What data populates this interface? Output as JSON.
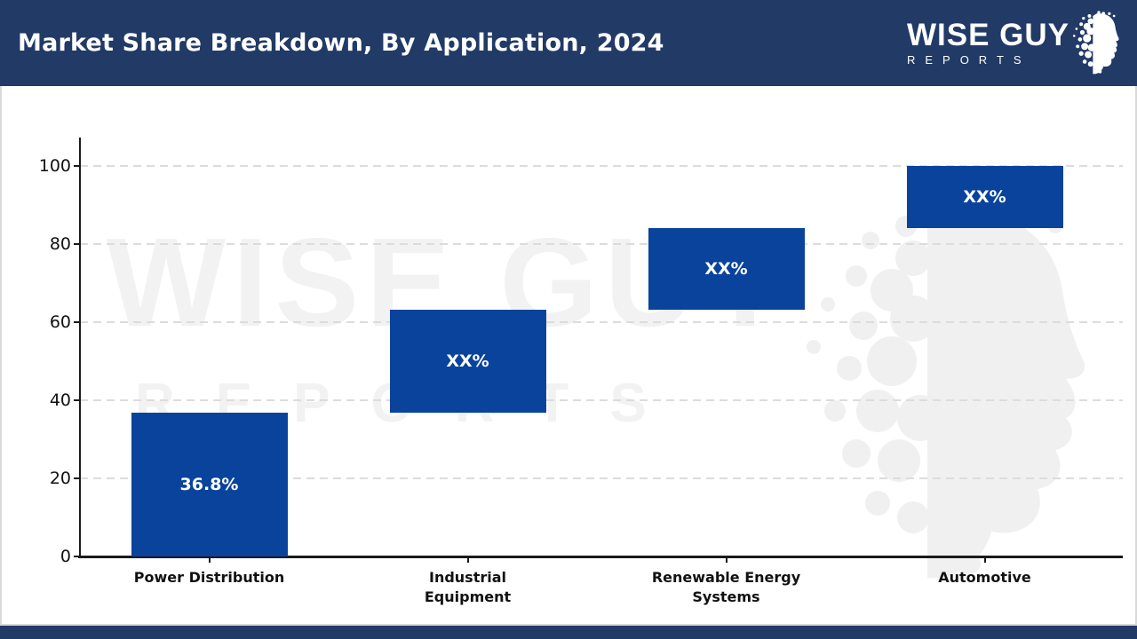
{
  "header": {
    "logo": {
      "name": "WISE GUY",
      "tagline": "REPORTS"
    }
  },
  "watermark": {
    "line1": "WISE GUY",
    "line2": "REPORTS"
  },
  "chart_data": {
    "type": "bar",
    "subtype": "floating-segment-waterfall",
    "title": "Market Share Breakdown, By Application, 2024",
    "categories": [
      "Power Distribution",
      "Industrial\nEquipment",
      "Renewable Energy\nSystems",
      "Automotive"
    ],
    "bars": [
      {
        "category": "Power Distribution",
        "start": 0,
        "end": 36.8,
        "label": "36.8%"
      },
      {
        "category": "Industrial Equipment",
        "start": 36.8,
        "end": 63.2,
        "label": "XX%"
      },
      {
        "category": "Renewable Energy Systems",
        "start": 63.2,
        "end": 84.2,
        "label": "XX%"
      },
      {
        "category": "Automotive",
        "start": 84.2,
        "end": 100,
        "label": "XX%"
      }
    ],
    "xlabel": "",
    "ylabel": "",
    "yticks": [
      0,
      20,
      40,
      60,
      80,
      100
    ],
    "ylim": [
      0,
      107
    ],
    "grid": "horizontal-dashed",
    "legend": "none"
  },
  "colors": {
    "header_bg": "#213a66",
    "footer_bg": "#213a66",
    "bar_fill": "#09439b",
    "bar_label": "#ffffff",
    "grid_line": "#dcdcdc",
    "axis_line": "#1a1a1a",
    "tick_text": "#111111",
    "watermark": "#f2f2f2",
    "title_text": "#ffffff"
  }
}
